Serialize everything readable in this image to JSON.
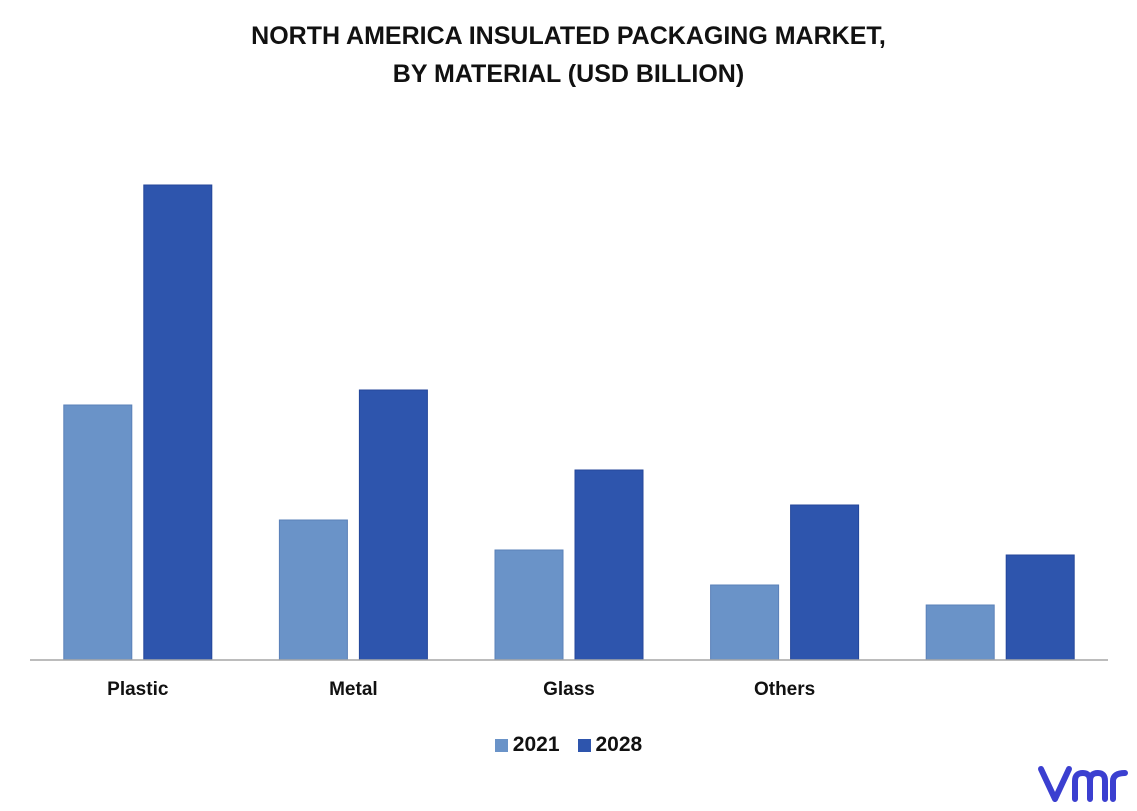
{
  "chart_data": {
    "type": "bar",
    "title_line_1": "NORTH AMERICA INSULATED PACKAGING MARKET,",
    "title_line_2": "BY MATERIAL (USD BILLION)",
    "categories": [
      "Plastic",
      "Metal",
      "Glass",
      "Others",
      ""
    ],
    "series": [
      {
        "name": "2021",
        "color": "#6a93c8",
        "values": [
          5.1,
          2.8,
          2.2,
          1.5,
          1.1
        ]
      },
      {
        "name": "2028",
        "color": "#2e55ad",
        "values": [
          9.5,
          5.4,
          3.8,
          3.1,
          2.1
        ]
      }
    ],
    "ylim": [
      0,
      10
    ],
    "grid": false,
    "legend_position": "bottom-center",
    "xlabel": "",
    "ylabel": ""
  },
  "logo": {
    "name": "vmr-logo",
    "color": "#3b3fd0"
  }
}
